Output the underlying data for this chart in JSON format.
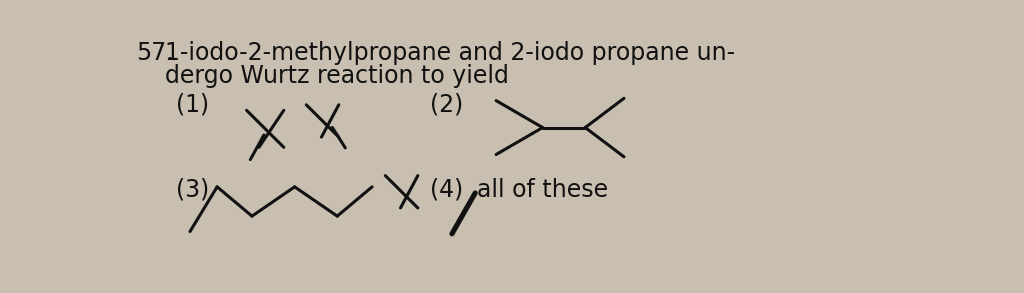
{
  "bg_color": "#c8bfb0",
  "text_color": "#111111",
  "question_number": "57.",
  "question_text_line1": "1-iodo-2-methylpropane and 2-iodo propane un-",
  "question_text_line2": "dergo Wurtz reaction to yield",
  "option1_label": "(1)",
  "option2_label": "(2)",
  "option3_label": "(3)",
  "option4_label": "(4)",
  "option4_text": "all of these",
  "font_size_question": 17,
  "font_size_options": 17,
  "line_width": 2.2,
  "fig_width": 10.24,
  "fig_height": 2.93
}
